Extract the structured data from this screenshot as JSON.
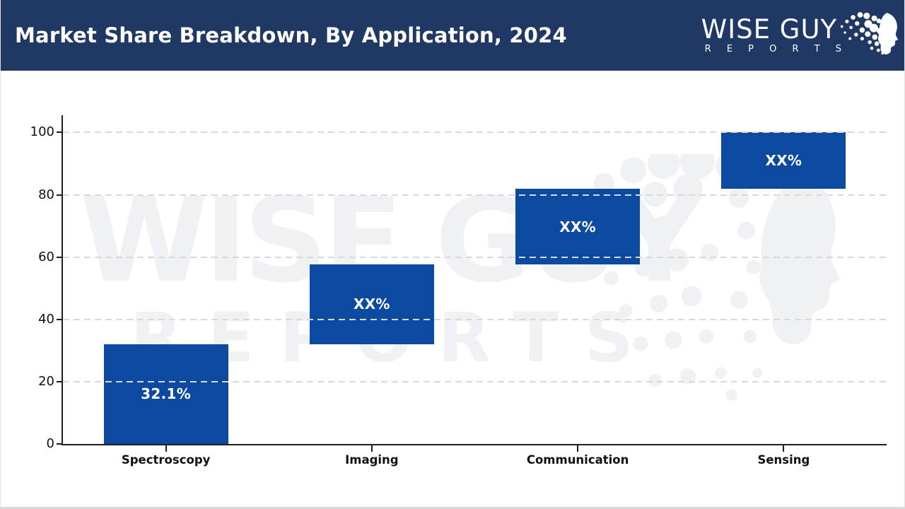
{
  "header": {
    "title": "Market Share Breakdown, By Application, 2024",
    "logo": {
      "line1": "WISE GUY",
      "line2": "R E P O R T S"
    }
  },
  "watermark": {
    "line1": "WISE GUY",
    "line2": "REPORTS"
  },
  "chart_data": {
    "type": "bar",
    "subtype": "waterfall",
    "title": "Market Share Breakdown, By Application, 2024",
    "categories": [
      "Spectroscopy",
      "Imaging",
      "Communication",
      "Sensing"
    ],
    "series": [
      {
        "name": "Market Share",
        "segments": [
          {
            "category": "Spectroscopy",
            "start": 0,
            "end": 32.1,
            "label": "32.1%"
          },
          {
            "category": "Imaging",
            "start": 32.1,
            "end": 57.6,
            "label": "XX%"
          },
          {
            "category": "Communication",
            "start": 57.6,
            "end": 81.9,
            "label": "XX%"
          },
          {
            "category": "Sensing",
            "start": 81.9,
            "end": 100,
            "label": "XX%"
          }
        ]
      }
    ],
    "yticks": [
      0,
      20,
      40,
      60,
      80,
      100
    ],
    "ylim": [
      0,
      105.5
    ],
    "xlabel": "",
    "ylabel": "",
    "grid": "horizontal-dashed",
    "legend": "none"
  },
  "colors": {
    "header_bg": "#203864",
    "bar": "#0b4aa0",
    "bar_label": "#ffffff",
    "grid": "#d9d9d9",
    "axis": "#1f1f1f",
    "tick_label": "#111111",
    "watermark": "#f0f1f4"
  }
}
